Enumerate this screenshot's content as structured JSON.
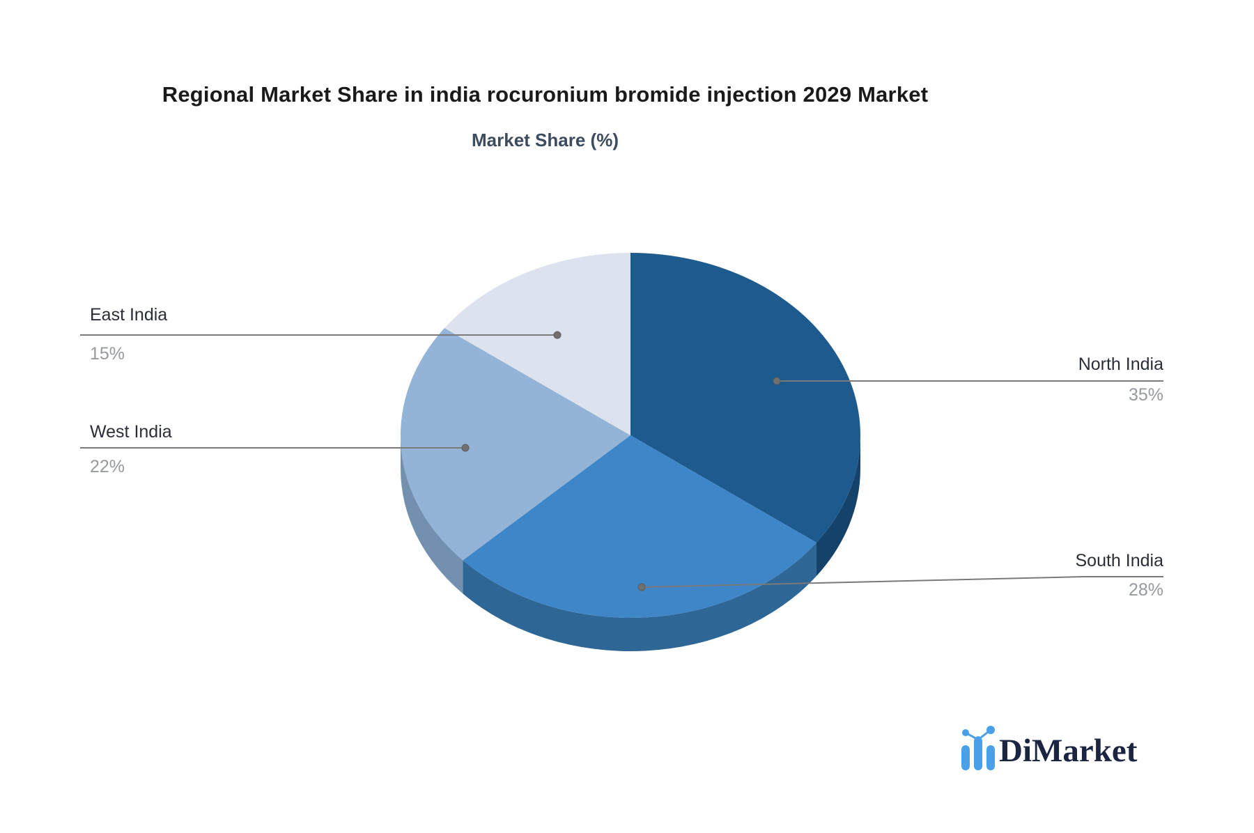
{
  "title": "Regional Market Share in india rocuronium bromide injection 2029 Market",
  "subtitle": "Market Share (%)",
  "chart_data": {
    "type": "pie",
    "style": "3d",
    "title": "Regional Market Share in india rocuronium bromide injection 2029 Market",
    "subtitle": "Market Share (%)",
    "unit": "%",
    "start_angle_deg": 0,
    "direction": "clockwise",
    "slices": [
      {
        "label": "North India",
        "value": 35,
        "display": "35%",
        "color": "#1d5a8d",
        "side_color": "#14426a"
      },
      {
        "label": "South India",
        "value": 28,
        "display": "28%",
        "color": "#3e86c8",
        "side_color": "#2e6796"
      },
      {
        "label": "West India",
        "value": 22,
        "display": "22%",
        "color": "#93b3d7",
        "side_color": "#7391af"
      },
      {
        "label": "East India",
        "value": 15,
        "display": "15%",
        "color": "#dce3ee",
        "side_color": "#b9c4d6"
      }
    ],
    "legend": "leader-line-labels"
  },
  "colors": {
    "background": "#ffffff",
    "title_text": "#1a1a1a",
    "subtitle_text": "#3d4b5f",
    "label_text": "#2a2e36",
    "value_text": "#969a9e",
    "leader_line": "#7a7a7a",
    "leader_dot": "#707070",
    "logo_text": "#1b2440",
    "logo_icon": "#49a0e8"
  },
  "logo": {
    "text": "DiMarket"
  }
}
